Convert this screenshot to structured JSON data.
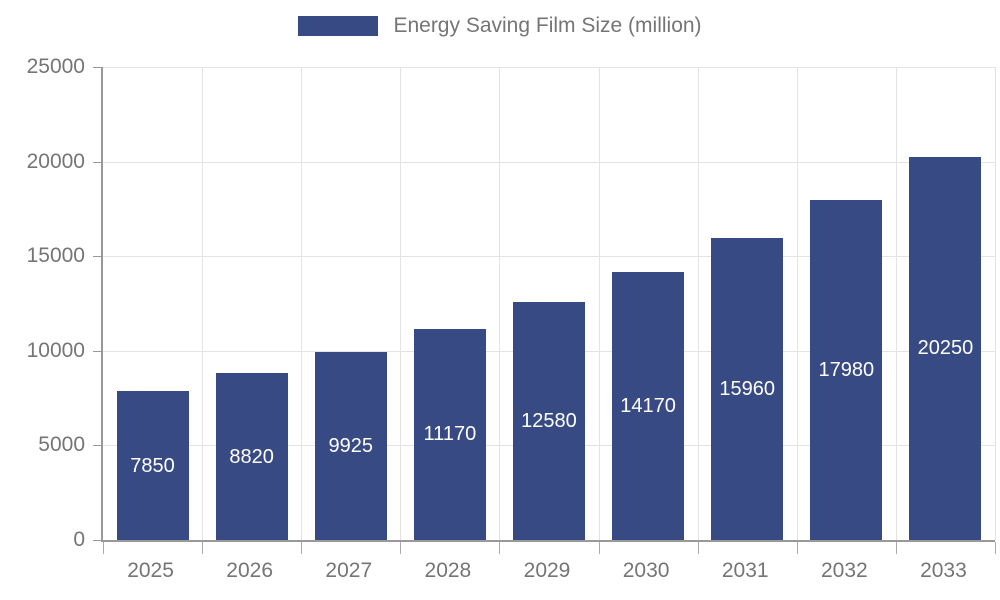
{
  "legend": {
    "label": "Energy Saving Film Size (million)"
  },
  "colors": {
    "bar": "#374a83",
    "axis_line": "#999999",
    "gridline": "#e3e3e3",
    "tick_text": "#757575",
    "bar_label_text": "#ffffff",
    "background": "#ffffff"
  },
  "chart_data": {
    "type": "bar",
    "series_name": "Energy Saving Film Size (million)",
    "categories": [
      "2025",
      "2026",
      "2027",
      "2028",
      "2029",
      "2030",
      "2031",
      "2032",
      "2033"
    ],
    "values": [
      7850,
      8820,
      9925,
      11170,
      12580,
      14170,
      15960,
      17980,
      20250
    ],
    "title": "",
    "xlabel": "",
    "ylabel": "",
    "ylim": [
      0,
      25000
    ],
    "yticks": [
      0,
      5000,
      10000,
      15000,
      20000,
      25000
    ],
    "grid": true,
    "legend_position": "top-center",
    "bar_label_position": "inside-center"
  }
}
